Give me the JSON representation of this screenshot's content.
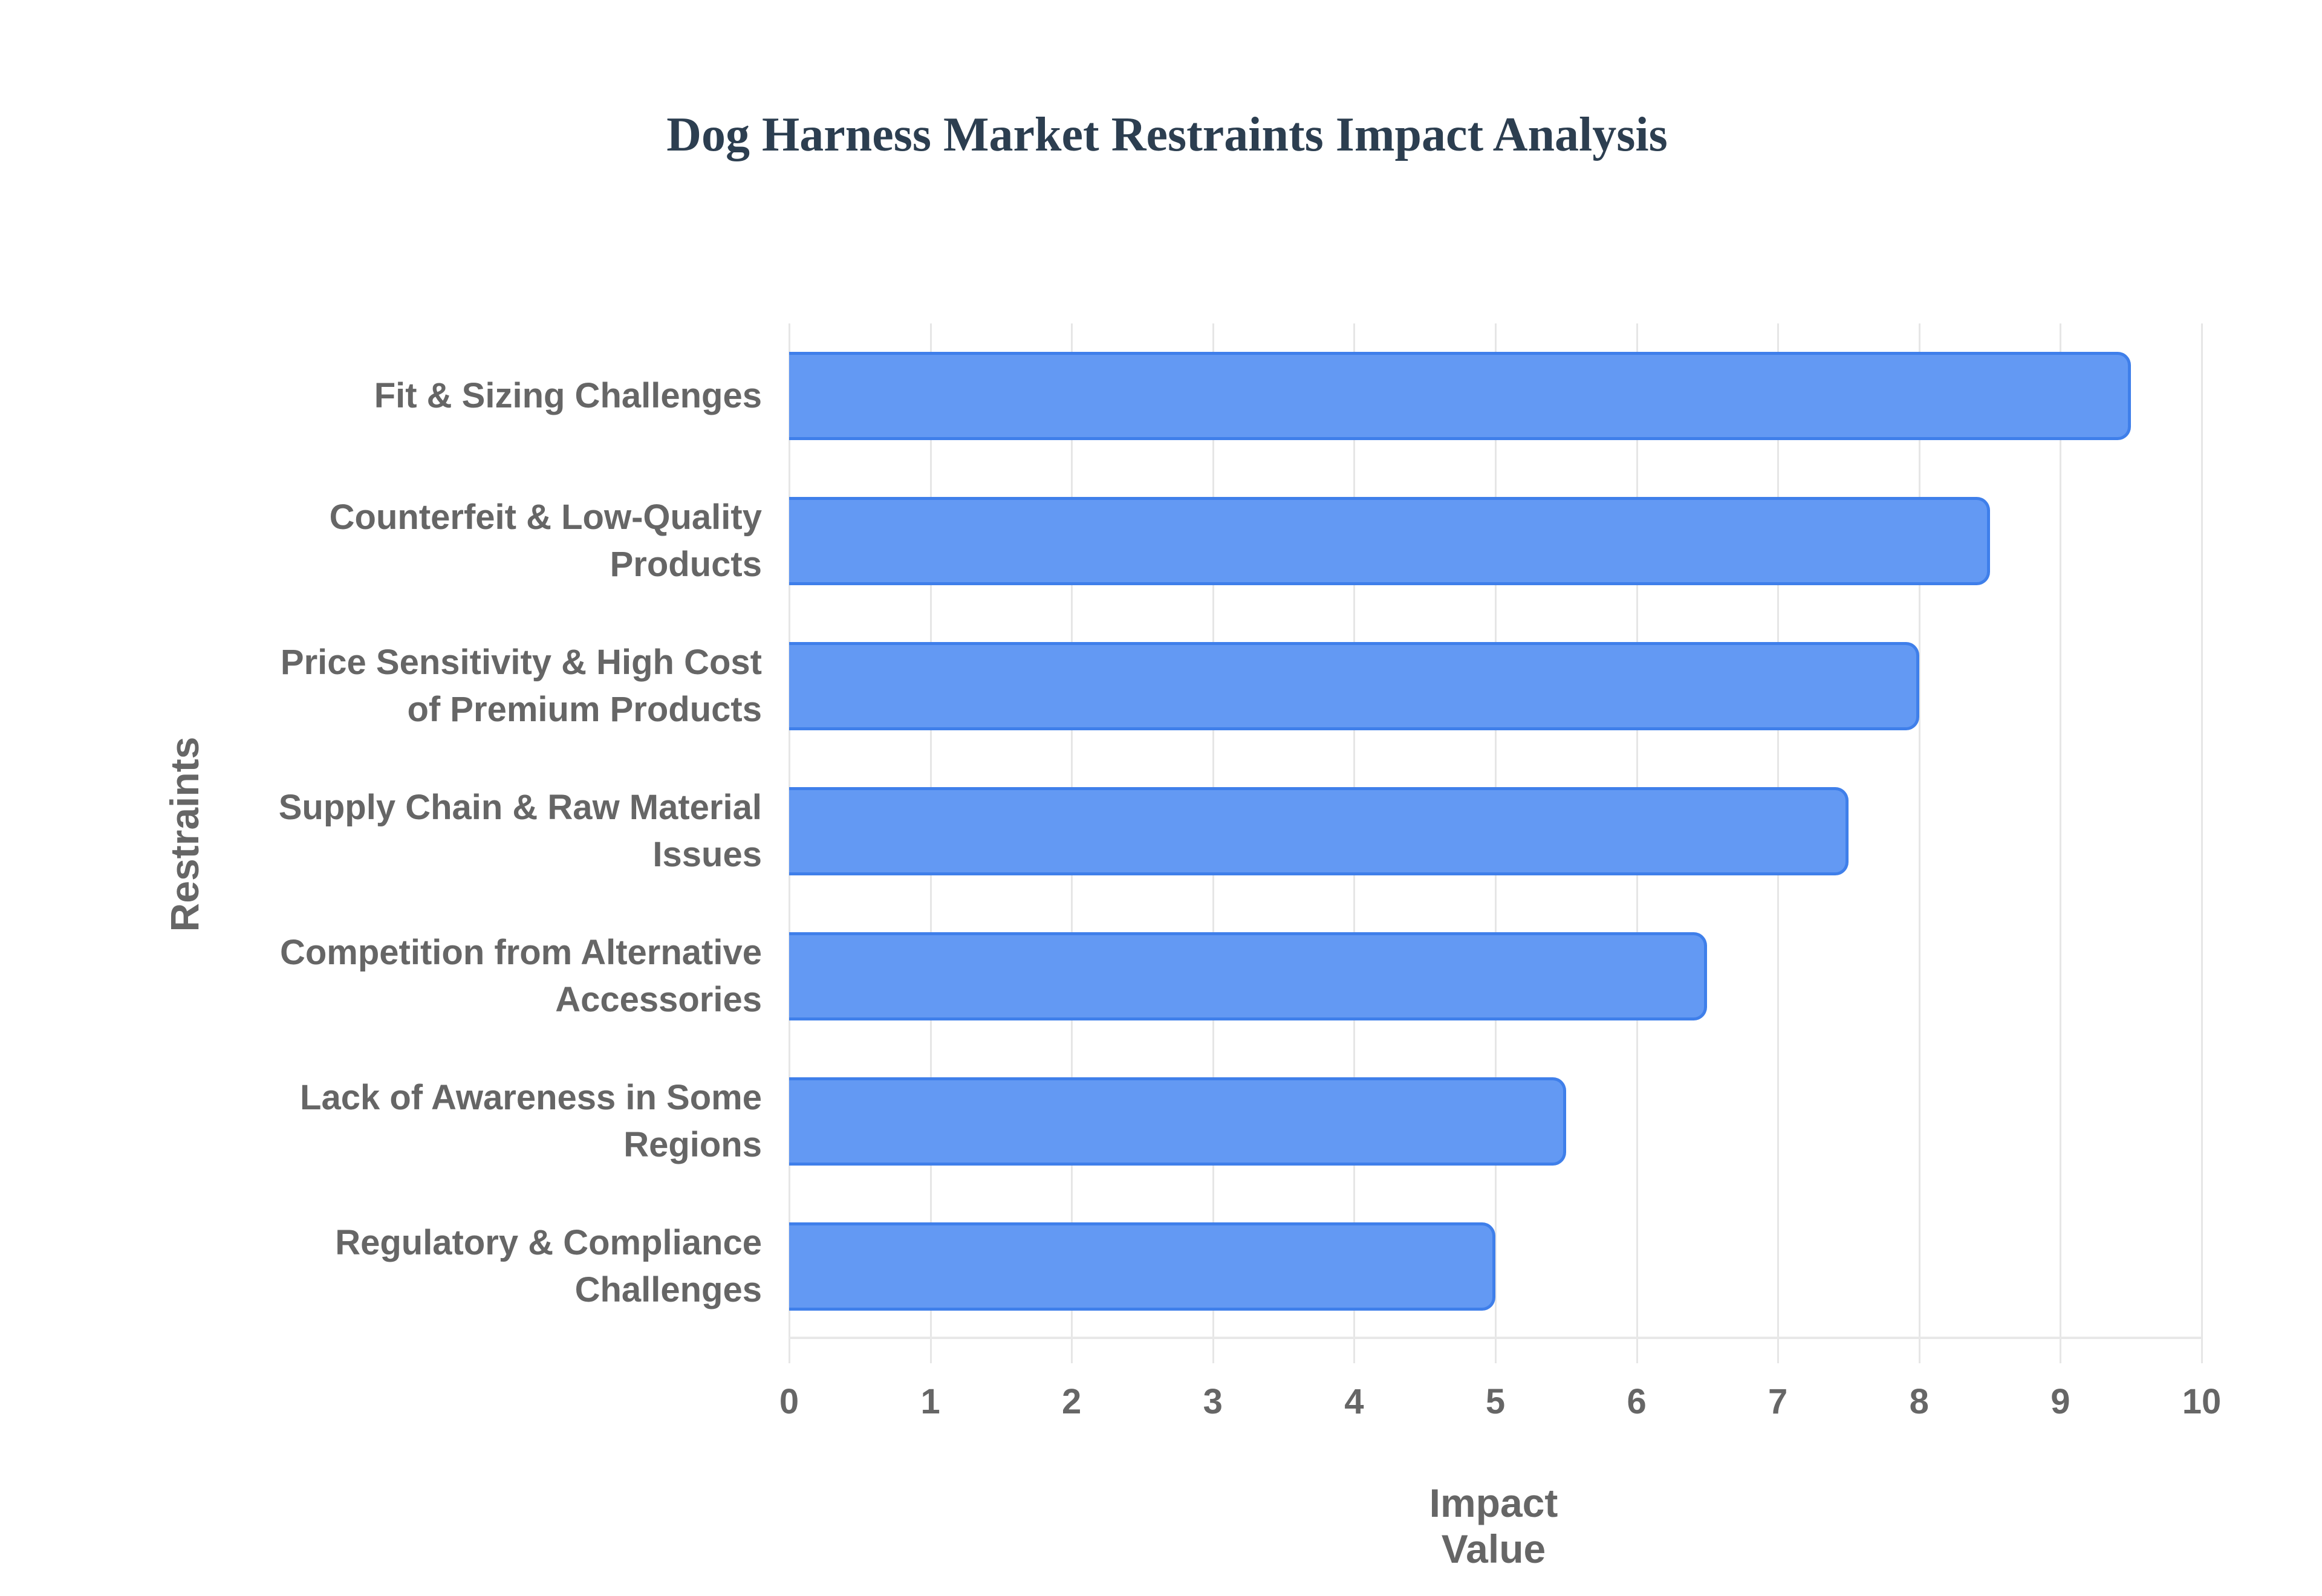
{
  "chart_data": {
    "type": "bar",
    "orientation": "horizontal",
    "title": "Dog Harness Market Restraints Impact Analysis",
    "xlabel": "Impact Value",
    "ylabel": "Restraints",
    "xlim": [
      0,
      10
    ],
    "x_ticks": [
      "0",
      "1",
      "2",
      "3",
      "4",
      "5",
      "6",
      "7",
      "8",
      "9",
      "10"
    ],
    "grid": true,
    "legend": null,
    "bar_color": "#6399f3",
    "bar_border_color": "#3f7fea",
    "categories": [
      "Fit & Sizing Challenges",
      "Counterfeit & Low-Quality Products",
      "Price Sensitivity & High Cost of Premium Products",
      "Supply Chain & Raw Material Issues",
      "Competition from Alternative Accessories",
      "Lack of Awareness in Some Regions",
      "Regulatory & Compliance Challenges"
    ],
    "category_lines": [
      [
        "Fit & Sizing Challenges"
      ],
      [
        "Counterfeit & Low-Quality",
        "Products"
      ],
      [
        "Price Sensitivity & High Cost",
        "of Premium Products"
      ],
      [
        "Supply Chain & Raw Material",
        "Issues"
      ],
      [
        "Competition from Alternative",
        "Accessories"
      ],
      [
        "Lack of Awareness in Some",
        "Regions"
      ],
      [
        "Regulatory & Compliance",
        "Challenges"
      ]
    ],
    "values": [
      9.5,
      8.5,
      8.0,
      7.5,
      6.5,
      5.5,
      5.0
    ]
  }
}
